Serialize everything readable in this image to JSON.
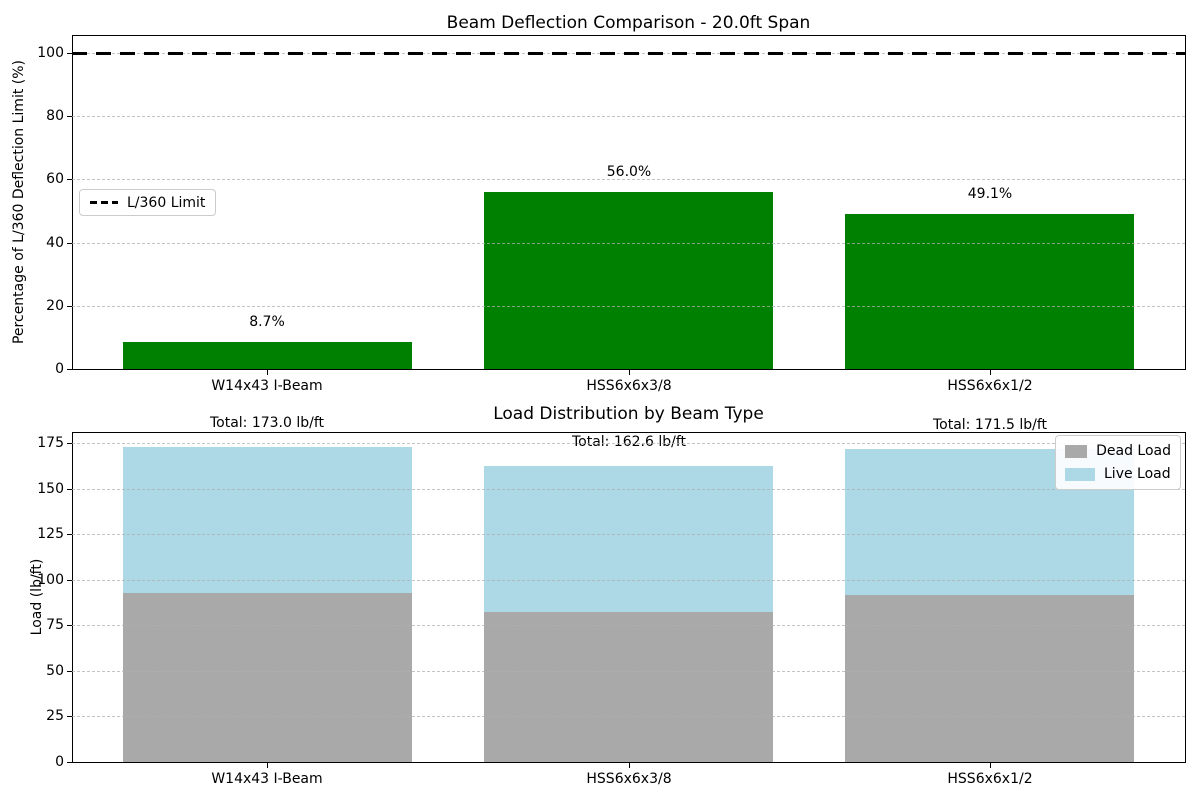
{
  "figure": {
    "background": "#ffffff"
  },
  "chart_data": [
    {
      "type": "bar",
      "title": "Beam Deflection Comparison - 20.0ft Span",
      "xlabel": "",
      "ylabel": "Percentage of L/360 Deflection Limit (%)",
      "categories": [
        "W14x43 I-Beam",
        "HSS6x6x3/8",
        "HSS6x6x1/2"
      ],
      "values": [
        8.7,
        56.0,
        49.1
      ],
      "bar_value_labels": [
        "8.7%",
        "56.0%",
        "49.1%"
      ],
      "bar_color": "#008000",
      "bar_width": 0.8,
      "yticks": [
        0,
        20,
        40,
        60,
        80,
        100
      ],
      "ylim": [
        0,
        105.7
      ],
      "xlim": [
        -0.54,
        2.54
      ],
      "grid": true,
      "legend_position": "center-left",
      "reference_line": {
        "value": 100,
        "color": "#000000",
        "style": "dashed",
        "label": "L/360 Limit"
      }
    },
    {
      "type": "bar",
      "stacked": true,
      "title": "Load Distribution by Beam Type",
      "xlabel": "",
      "ylabel": "Load (lb/ft)",
      "categories": [
        "W14x43 I-Beam",
        "HSS6x6x3/8",
        "HSS6x6x1/2"
      ],
      "series": [
        {
          "name": "Dead Load",
          "color": "#a9a9a9",
          "values": [
            93.0,
            82.6,
            91.5
          ]
        },
        {
          "name": "Live Load",
          "color": "#add8e6",
          "values": [
            80.0,
            80.0,
            80.0
          ]
        }
      ],
      "totals": [
        173.0,
        162.6,
        171.5
      ],
      "total_labels": [
        "Total: 173.0 lb/ft",
        "Total: 162.6 lb/ft",
        "Total: 171.5 lb/ft"
      ],
      "bar_width": 0.8,
      "yticks": [
        0,
        25,
        50,
        75,
        100,
        125,
        150,
        175
      ],
      "ylim": [
        0,
        181.1
      ],
      "xlim": [
        -0.54,
        2.54
      ],
      "grid": true,
      "legend_position": "top-right"
    }
  ]
}
